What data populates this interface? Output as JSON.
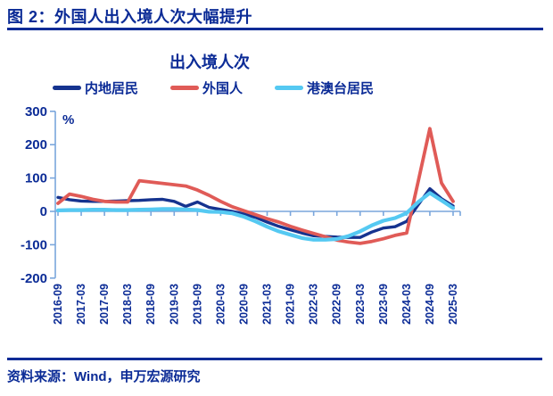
{
  "page": {
    "title": "图 2：外国人出入境人次大幅提升",
    "source": "资料来源：Wind，申万宏源研究"
  },
  "chart_data": {
    "type": "line",
    "title": "出入境人次",
    "ylabel": "%",
    "ylim": [
      -200,
      300
    ],
    "yticks": [
      300,
      200,
      100,
      0,
      -100,
      -200
    ],
    "grid": false,
    "legend_position": "top",
    "x_frequency": "quarterly",
    "x_tick_labels": [
      "2016-09",
      "2017-03",
      "2017-09",
      "2018-03",
      "2018-09",
      "2019-03",
      "2019-09",
      "2020-03",
      "2020-09",
      "2021-03",
      "2021-09",
      "2022-03",
      "2022-09",
      "2023-03",
      "2023-09",
      "2024-03",
      "2024-09",
      "2025-03"
    ],
    "x": [
      "2016-09",
      "2016-12",
      "2017-03",
      "2017-06",
      "2017-09",
      "2017-12",
      "2018-03",
      "2018-06",
      "2018-09",
      "2018-12",
      "2019-03",
      "2019-06",
      "2019-09",
      "2019-12",
      "2020-03",
      "2020-06",
      "2020-09",
      "2020-12",
      "2021-03",
      "2021-06",
      "2021-09",
      "2021-12",
      "2022-03",
      "2022-06",
      "2022-09",
      "2022-12",
      "2023-03",
      "2023-06",
      "2023-09",
      "2023-12",
      "2024-03",
      "2024-06",
      "2024-09",
      "2024-12",
      "2025-03"
    ],
    "series": [
      {
        "name": "内地居民",
        "color": "#15338f",
        "values": [
          42,
          35,
          31,
          30,
          30,
          31,
          32,
          33,
          35,
          36,
          30,
          15,
          28,
          12,
          6,
          0,
          -8,
          -18,
          -32,
          -45,
          -55,
          -65,
          -73,
          -75,
          -77,
          -78,
          -78,
          -62,
          -50,
          -46,
          -30,
          20,
          68,
          38,
          16
        ]
      },
      {
        "name": "外国人",
        "color": "#e05b57",
        "values": [
          24,
          52,
          45,
          36,
          30,
          28,
          28,
          92,
          88,
          84,
          80,
          76,
          64,
          48,
          30,
          14,
          2,
          -10,
          -22,
          -32,
          -45,
          -56,
          -66,
          -76,
          -86,
          -92,
          -96,
          -90,
          -82,
          -72,
          -65,
          90,
          248,
          85,
          30
        ]
      },
      {
        "name": "港澳台居民",
        "color": "#55c9f2",
        "values": [
          3,
          4,
          4,
          5,
          5,
          4,
          4,
          5,
          6,
          7,
          7,
          6,
          4,
          -1,
          -2,
          -6,
          -16,
          -30,
          -46,
          -60,
          -70,
          -80,
          -85,
          -85,
          -83,
          -74,
          -60,
          -42,
          -28,
          -20,
          -5,
          28,
          55,
          33,
          10
        ]
      }
    ],
    "axis_color": "#7aa6dc",
    "text_color": "#0b2b96"
  }
}
